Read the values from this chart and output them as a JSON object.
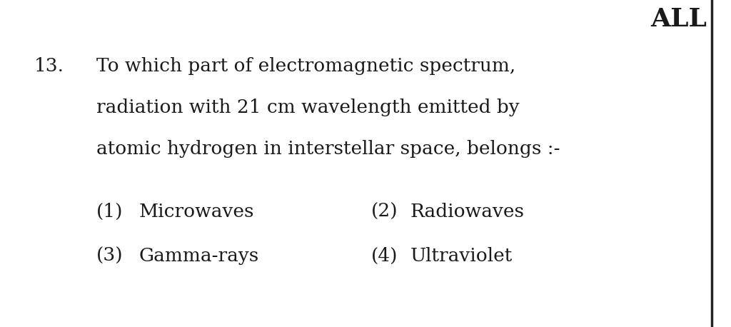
{
  "background_color": "#ffffff",
  "text_color": "#1a1a1a",
  "all_label": "ALL",
  "all_fontsize": 26,
  "question_number": "13.",
  "question_text_lines": [
    "To which part of electromagnetic spectrum,",
    "radiation with 21 cm wavelength emitted by",
    "atomic hydrogen in interstellar space, belongs :-"
  ],
  "options": [
    {
      "num": "(1)",
      "text": "Microwaves",
      "col": 0
    },
    {
      "num": "(2)",
      "text": "Radiowaves",
      "col": 1
    },
    {
      "num": "(3)",
      "text": "Gamma-rays",
      "col": 0
    },
    {
      "num": "(4)",
      "text": "Ultraviolet",
      "col": 1
    }
  ],
  "right_bar_color": "#222222",
  "question_fontsize": 19,
  "option_fontsize": 19,
  "qnum_fontsize": 19
}
